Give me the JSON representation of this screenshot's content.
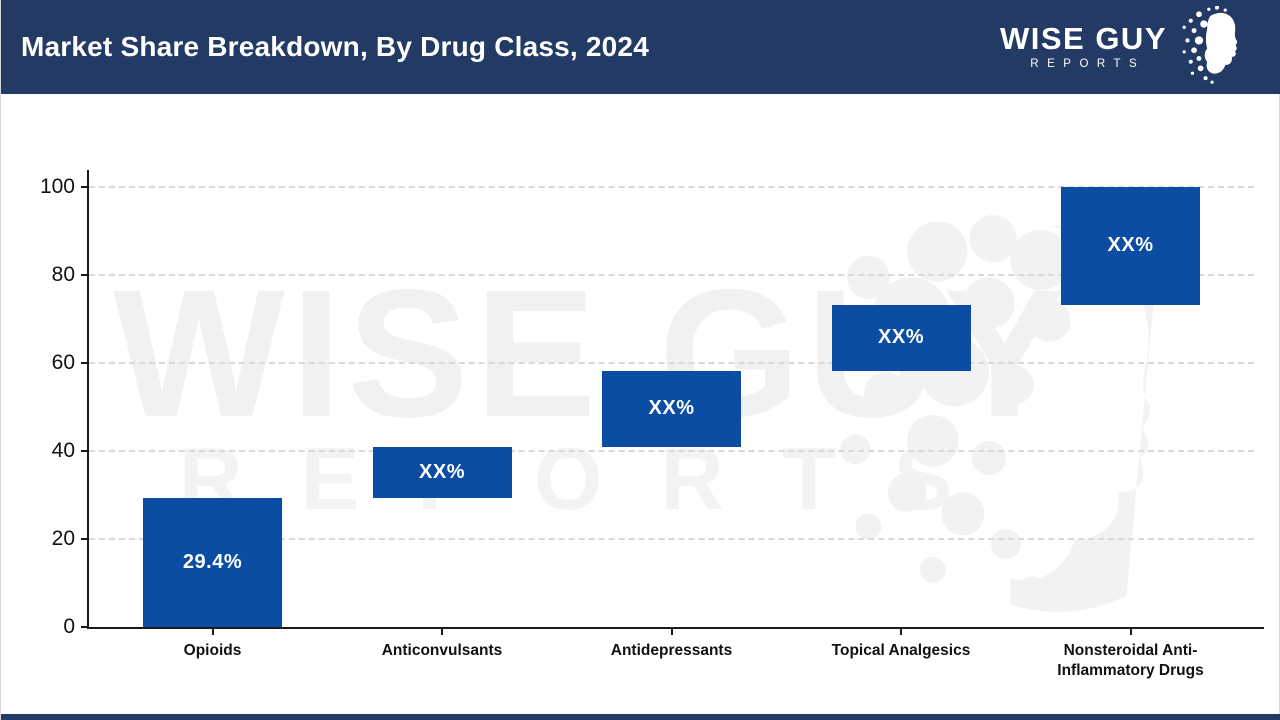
{
  "header": {
    "title": "Market Share Breakdown, By Drug Class, 2024",
    "logo": {
      "line1": "WISE GUY",
      "line2": "REPORTS"
    }
  },
  "watermark": {
    "line1": "WISE GUY",
    "line2": "REPORTS"
  },
  "colors": {
    "header_bg": "#223a64",
    "footer_bg": "#223a64",
    "bar": "#0b4da2",
    "bar_label": "#ffffff",
    "grid": "#d9d9d9",
    "axis": "#1a1a1a",
    "watermark": "#f1f1f1"
  },
  "chart_data": {
    "type": "bar",
    "subtype": "waterfall",
    "title": "Market Share Breakdown, By Drug Class, 2024",
    "categories": [
      "Opioids",
      "Anticonvulsants",
      "Antidepressants",
      "Topical Analgesics",
      "Nonsteroidal Anti-Inflammatory Drugs"
    ],
    "segments": [
      {
        "category": "Opioids",
        "start": 0,
        "end": 29.4,
        "label": "29.4%"
      },
      {
        "category": "Anticonvulsants",
        "start": 29.4,
        "end": 41.0,
        "label": "XX%"
      },
      {
        "category": "Antidepressants",
        "start": 41.0,
        "end": 58.2,
        "label": "XX%"
      },
      {
        "category": "Topical Analgesics",
        "start": 58.2,
        "end": 73.2,
        "label": "XX%"
      },
      {
        "category": "Nonsteroidal Anti-Inflammatory Drugs",
        "start": 73.2,
        "end": 100.0,
        "label": "XX%"
      }
    ],
    "xlabel": "",
    "ylabel": "",
    "ylim": [
      0,
      100
    ],
    "yticks": [
      0,
      20,
      40,
      60,
      80,
      100
    ],
    "grid": "horizontal-dashed",
    "legend": "none"
  }
}
